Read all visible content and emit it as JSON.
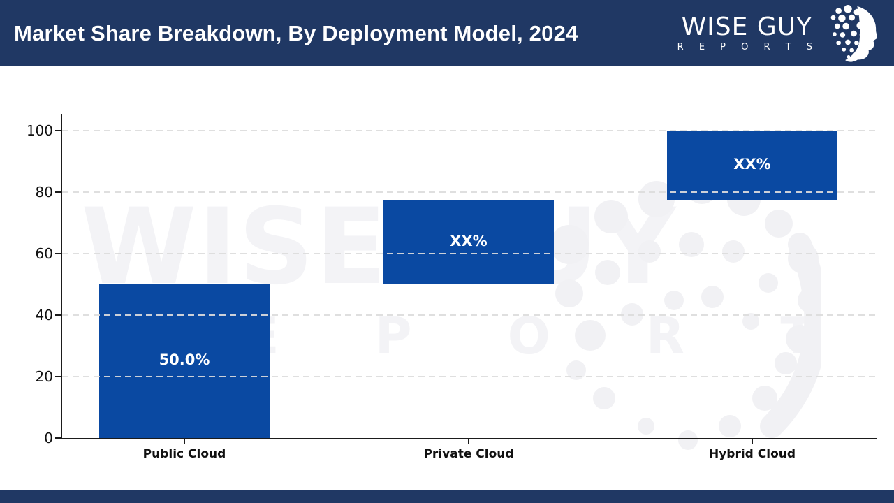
{
  "header": {
    "title": "Market Share Breakdown, By Deployment Model, 2024",
    "background": "#203864",
    "logo": {
      "line1": "WISE GUY",
      "line2": "R E P O R T S"
    }
  },
  "watermark": {
    "line1": "WISE GUY",
    "line2": "R E P O R T S"
  },
  "footer": {
    "background": "#203864"
  },
  "colors": {
    "bar": "#0a49a2",
    "bar_label": "#ffffff",
    "axis": "#1b1b1b",
    "grid": "#dcdcdc",
    "watermark": "#f3f3f6"
  },
  "chart_data": {
    "type": "bar",
    "subtype": "stacked-waterfall (floating segment bars)",
    "title": "Market Share Breakdown, By Deployment Model, 2024",
    "categories": [
      "Public Cloud",
      "Private Cloud",
      "Hybrid Cloud"
    ],
    "series": [
      {
        "name": "Market share (%)",
        "segments": [
          {
            "category": "Public Cloud",
            "from": 0,
            "to": 50,
            "label": "50.0%"
          },
          {
            "category": "Private Cloud",
            "from": 50,
            "to": 77.5,
            "label": "XX%"
          },
          {
            "category": "Hybrid Cloud",
            "from": 77.5,
            "to": 100,
            "label": "XX%"
          }
        ]
      }
    ],
    "xlabel": "",
    "ylabel": "",
    "yticks": [
      0,
      20,
      40,
      60,
      80,
      100
    ],
    "ylim": [
      0,
      105
    ],
    "grid": "horizontal dashed, drawn over bars",
    "legend": "none"
  }
}
